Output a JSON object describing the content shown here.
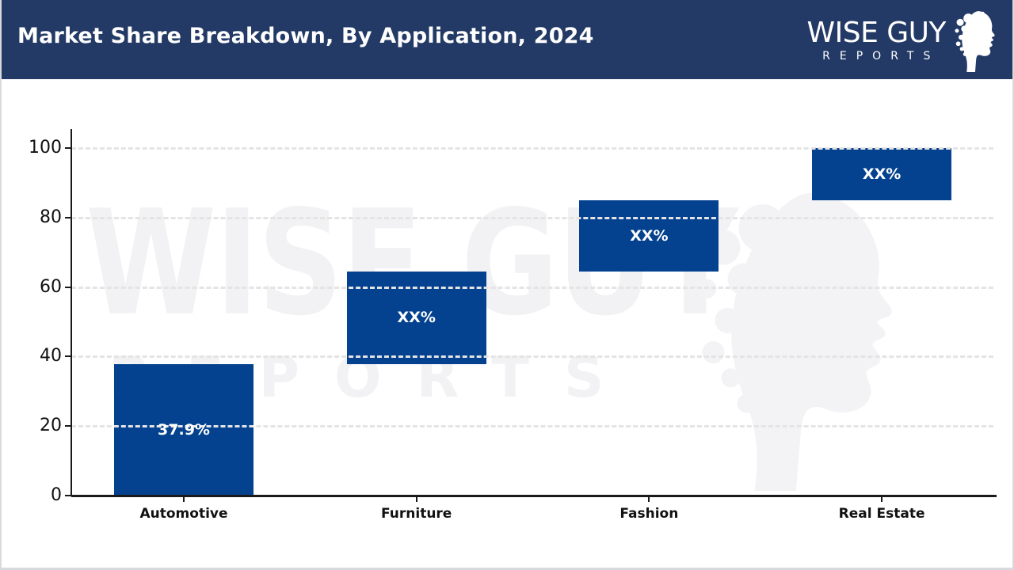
{
  "header": {
    "title": "Market Share Breakdown, By Application, 2024"
  },
  "brand": {
    "name": "WISE GUY",
    "tagline": "REPORTS"
  },
  "watermark": {
    "line1": "WISE GUY",
    "line2": "REPORTS"
  },
  "colors": {
    "header_bg": "#233a66",
    "bar": "#04418f",
    "bar_label": "#ffffff",
    "axis": "#1a1a1a",
    "gridline": "#e4e4e4",
    "watermark": "#f2f2f4"
  },
  "chart_data": {
    "type": "bar",
    "variant": "waterfall",
    "title": "Market Share Breakdown, By Application, 2024",
    "categories": [
      "Automotive",
      "Furniture",
      "Fashion",
      "Real Estate"
    ],
    "segments": [
      {
        "category": "Automotive",
        "start": 0,
        "end": 37.9,
        "label": "37.9%"
      },
      {
        "category": "Furniture",
        "start": 37.9,
        "end": 64.5,
        "label": "XX%"
      },
      {
        "category": "Fashion",
        "start": 64.5,
        "end": 85.0,
        "label": "XX%"
      },
      {
        "category": "Real Estate",
        "start": 85.0,
        "end": 100.0,
        "label": "XX%"
      }
    ],
    "yticks": [
      0,
      20,
      40,
      60,
      80,
      100
    ],
    "ylim": [
      0,
      105.5
    ],
    "xlabel": "",
    "ylabel": "",
    "grid": "horizontal-dashed",
    "legend": "none"
  }
}
